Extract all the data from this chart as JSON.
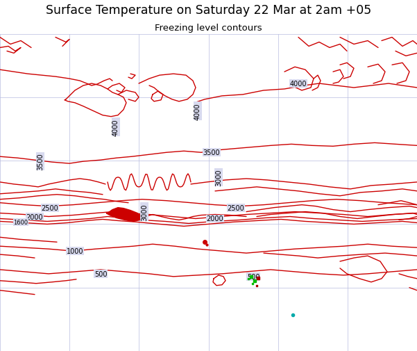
{
  "title": "Surface Temperature on Saturday 22 Mar at 2am +05",
  "subtitle": "Freezing level contours",
  "map_bg": "#d8daef",
  "white_bg": "#ffffff",
  "contour_color": "#cc0000",
  "grid_color": "#b8bce0",
  "title_fontsize": 12.5,
  "subtitle_fontsize": 9.5,
  "figsize": [
    6.01,
    5.06
  ],
  "dpi": 100,
  "lw": 1.0
}
